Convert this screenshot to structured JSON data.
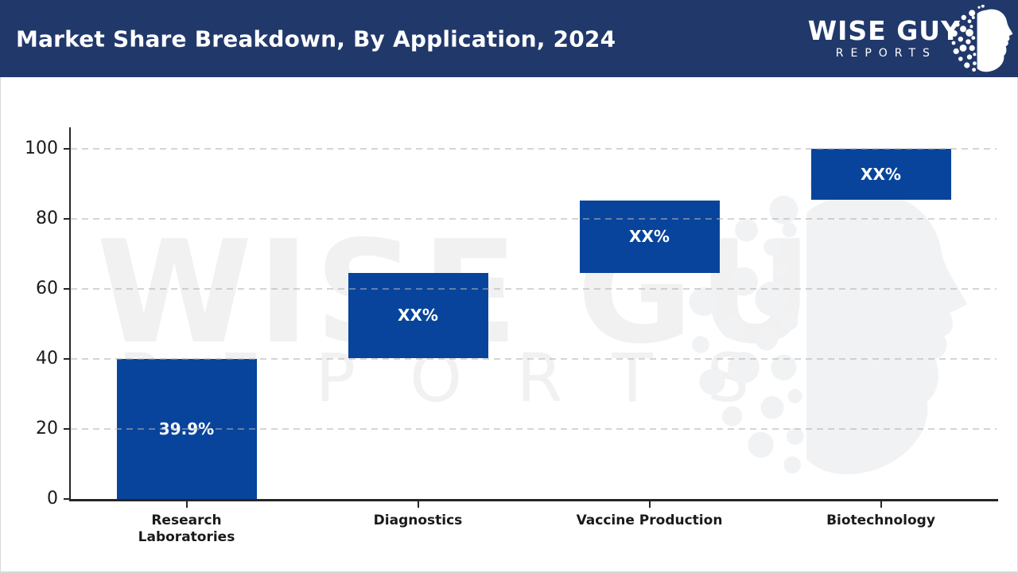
{
  "header": {
    "title": "Market Share Breakdown, By Application, 2024",
    "bg_color": "#21386b",
    "logo": {
      "line1": "WISE GUY",
      "line2": "REPORTS"
    }
  },
  "watermark": {
    "line1": "WISE GUY",
    "line2": "REPORTS"
  },
  "icons": {
    "logo_face": "face-profile-dots-icon"
  },
  "chart_data": {
    "type": "bar",
    "subtype": "waterfall",
    "title": "Market Share Breakdown, By Application, 2024",
    "categories": [
      "Research Laboratories",
      "Diagnostics",
      "Vaccine Production",
      "Biotechnology"
    ],
    "category_lines": [
      [
        "Research",
        "Laboratories"
      ],
      [
        "Diagnostics"
      ],
      [
        "Vaccine Production"
      ],
      [
        "Biotechnology"
      ]
    ],
    "segments": [
      {
        "category": "Research Laboratories",
        "start": 0,
        "end": 39.9,
        "label": "39.9%"
      },
      {
        "category": "Diagnostics",
        "start": 40.2,
        "end": 64.6,
        "label": "XX%"
      },
      {
        "category": "Vaccine Production",
        "start": 64.6,
        "end": 85.2,
        "label": "XX%"
      },
      {
        "category": "Biotechnology",
        "start": 85.5,
        "end": 100,
        "label": "XX%"
      }
    ],
    "xlabel": "",
    "ylabel": "",
    "ylim": [
      0,
      106
    ],
    "yticks": [
      0,
      20,
      40,
      60,
      80,
      100
    ],
    "grid": {
      "visible": true,
      "style": "dashed",
      "color": "#d9d9d9"
    },
    "legend": null,
    "bar_color": "#08449b",
    "bar_label_color": "#ffffff",
    "axis_color": "#262626",
    "tick_label_color": "#1a1a1a"
  }
}
